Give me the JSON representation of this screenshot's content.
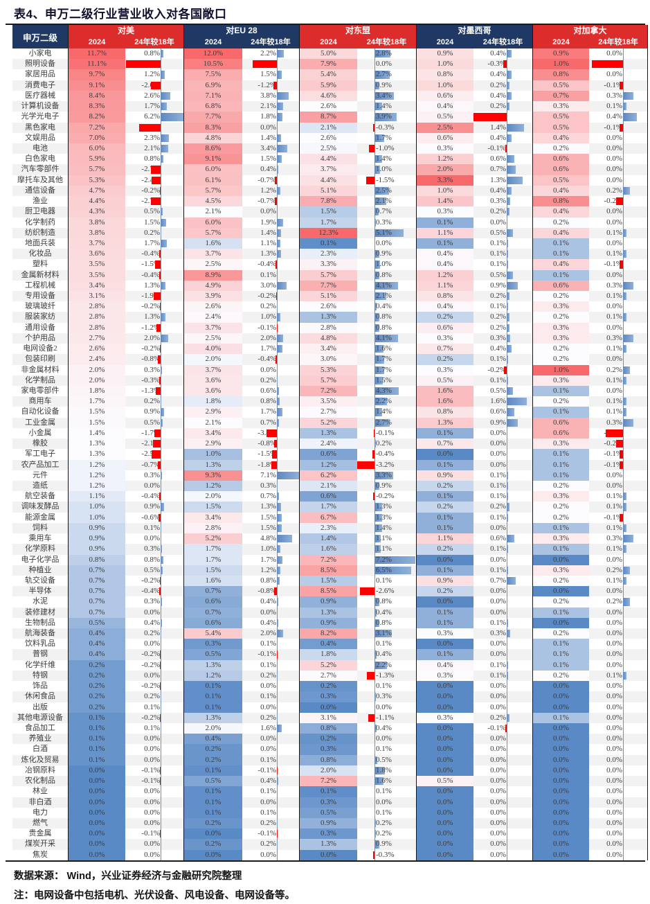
{
  "title": "表4、申万二级行业营业收入对各国敞口",
  "table": {
    "industry_header": "申万二级",
    "subheaders": [
      "2024",
      "24年较18年"
    ],
    "group_labels": [
      "对美",
      "对EU 28",
      "对东盟",
      "对墨西哥",
      "对加拿大"
    ]
  },
  "footer": {
    "source": "数据来源：  Wind，兴业证券经济与金融研究院整理",
    "note": "注：电网设备中包括电机、光伏设备、风电设备、电网设备等。"
  },
  "colors": {
    "header_red": "#DD2C2C",
    "header_navy": "#1F3864",
    "heat_min_blue": "#5A8AC6",
    "heat_mid_white": "#FCFCFF",
    "heat_max_red": "#F8696B",
    "bar_positive_blue": "#6A91C9",
    "bar_negative_red": "#FE0000"
  },
  "chart_data": {
    "type": "table",
    "title": "表4、申万二级行业营业收入对各国敞口",
    "unit": "%",
    "columns": [
      "申万二级",
      "对美 2024",
      "对美 24年较18年",
      "对EU 28 2024",
      "对EU 28 24年较18年",
      "对东盟 2024",
      "对东盟 24年较18年",
      "对墨西哥 2024",
      "对墨西哥 24年较18年",
      "对加拿大 2024",
      "对加拿大 24年较18年"
    ],
    "rows": [
      [
        "小家电",
        11.7,
        0.8,
        12.0,
        2.2,
        5.0,
        2.8,
        0.9,
        0.4,
        0.9,
        0.0
      ],
      [
        "照明设备",
        11.1,
        -9.4,
        10.5,
        -7.7,
        7.9,
        0.0,
        1.0,
        -0.3,
        1.0,
        -0.9
      ],
      [
        "家居用品",
        9.7,
        1.2,
        7.5,
        1.5,
        5.4,
        2.7,
        0.8,
        0.4,
        0.8,
        0.0
      ],
      [
        "消费电子",
        9.1,
        -2.6,
        6.9,
        -1.2,
        5.9,
        0.9,
        1.0,
        0.2,
        0.5,
        -0.1
      ],
      [
        "医疗器械",
        8.4,
        2.6,
        7.1,
        3.8,
        4.6,
        3.4,
        0.6,
        0.4,
        0.7,
        0.3
      ],
      [
        "计算机设备",
        8.3,
        1.7,
        6.8,
        2.1,
        2.6,
        1.4,
        0.4,
        0.2,
        0.3,
        0.1
      ],
      [
        "光学光电子",
        8.2,
        6.2,
        7.7,
        1.8,
        8.7,
        3.9,
        0.5,
        -3.1,
        0.5,
        0.4
      ],
      [
        "黑色家电",
        7.2,
        -5.9,
        8.3,
        0.0,
        2.1,
        -0.3,
        2.5,
        1.4,
        0.5,
        -0.1
      ],
      [
        "文娱用品",
        7.0,
        2.3,
        4.8,
        1.4,
        2.6,
        1.7,
        0.6,
        0.4,
        0.4,
        0.0
      ],
      [
        "电池",
        6.0,
        2.1,
        8.6,
        3.4,
        2.5,
        -1.0,
        0.3,
        -0.1,
        0.2,
        0.0
      ],
      [
        "白色家电",
        5.9,
        0.8,
        9.1,
        1.5,
        4.4,
        1.4,
        1.2,
        0.6,
        0.6,
        0.0
      ],
      [
        "汽车零部件",
        5.7,
        -2.7,
        6.0,
        0.4,
        3.7,
        1.0,
        2.0,
        0.7,
        0.6,
        0.0
      ],
      [
        "摩托车及其他",
        5.3,
        -2.4,
        6.1,
        -0.7,
        4.4,
        -1.5,
        3.3,
        1.3,
        0.5,
        0.0
      ],
      [
        "通信设备",
        4.7,
        -0.2,
        5.7,
        1.2,
        5.1,
        2.5,
        1.0,
        0.4,
        0.4,
        0.2
      ],
      [
        "渔业",
        4.4,
        -2.7,
        4.5,
        -0.7,
        7.8,
        2.1,
        1.4,
        0.3,
        0.8,
        -0.2
      ],
      [
        "厨卫电器",
        4.3,
        0.5,
        2.1,
        0.0,
        1.5,
        0.7,
        0.3,
        0.2,
        0.4,
        0.0
      ],
      [
        "化学制药",
        3.8,
        1.5,
        6.0,
        1.9,
        1.7,
        0.3,
        0.1,
        0.0,
        0.2,
        0.0
      ],
      [
        "纺织制造",
        3.8,
        0.2,
        5.7,
        1.4,
        12.3,
        5.1,
        1.1,
        0.5,
        0.4,
        0.1
      ],
      [
        "地面兵装",
        3.7,
        1.7,
        1.6,
        1.1,
        0.1,
        0.0,
        0.1,
        0.1,
        0.1,
        0.0
      ],
      [
        "化妆品",
        3.6,
        -0.4,
        3.7,
        1.3,
        2.3,
        0.9,
        0.4,
        0.1,
        0.1,
        0.1
      ],
      [
        "塑料",
        3.5,
        -1.5,
        2.5,
        -0.4,
        3.3,
        1.0,
        0.4,
        0.1,
        0.4,
        -0.1
      ],
      [
        "金属新材料",
        3.5,
        -0.4,
        8.9,
        0.1,
        5.7,
        0.8,
        1.2,
        0.5,
        0.1,
        0.0
      ],
      [
        "工程机械",
        3.4,
        1.3,
        4.9,
        3.0,
        7.7,
        4.1,
        1.1,
        0.9,
        0.6,
        0.3
      ],
      [
        "专用设备",
        3.1,
        -1.9,
        3.9,
        -0.2,
        5.1,
        2.1,
        0.8,
        0.2,
        0.2,
        0.1
      ],
      [
        "玻璃玻纤",
        2.8,
        -0.2,
        2.6,
        0.2,
        2.6,
        0.4,
        0.4,
        0.1,
        0.3,
        0.0
      ],
      [
        "服装家纺",
        2.8,
        1.3,
        2.4,
        1.0,
        1.3,
        0.8,
        0.2,
        0.2,
        0.2,
        0.1
      ],
      [
        "通用设备",
        2.8,
        -1.2,
        3.7,
        -0.1,
        2.8,
        0.8,
        0.6,
        0.2,
        0.3,
        0.0
      ],
      [
        "个护用品",
        2.7,
        2.0,
        2.5,
        2.0,
        4.8,
        4.1,
        0.3,
        0.3,
        0.3,
        0.3
      ],
      [
        "电网设备2",
        2.6,
        -0.2,
        4.0,
        1.7,
        3.4,
        1.6,
        0.7,
        0.4,
        0.2,
        0.1
      ],
      [
        "包装印刷",
        2.4,
        -0.8,
        2.0,
        -0.4,
        3.0,
        1.7,
        0.2,
        0.1,
        0.2,
        0.0
      ],
      [
        "非金属材料",
        2.0,
        0.3,
        3.7,
        0.0,
        5.3,
        1.7,
        0.3,
        -0.2,
        1.0,
        0.2
      ],
      [
        "化学制品",
        2.0,
        -0.3,
        3.6,
        0.2,
        5.7,
        1.5,
        0.5,
        0.1,
        0.3,
        0.1
      ],
      [
        "家电零部件",
        1.8,
        -1.3,
        3.6,
        0.6,
        7.2,
        4.3,
        1.6,
        0.5,
        0.1,
        0.0
      ],
      [
        "商用车",
        1.7,
        0.2,
        1.8,
        0.8,
        3.5,
        2.2,
        1.6,
        1.6,
        0.2,
        0.1
      ],
      [
        "自动化设备",
        1.5,
        0.9,
        2.9,
        1.7,
        2.7,
        1.4,
        0.8,
        0.6,
        0.1,
        0.1
      ],
      [
        "工业金属",
        1.5,
        0.5,
        2.1,
        0.7,
        5.2,
        2.7,
        1.3,
        0.9,
        0.6,
        0.3
      ],
      [
        "小金属",
        1.4,
        -1.7,
        3.4,
        -3.4,
        1.3,
        -0.1,
        0.1,
        0.0,
        0.6,
        -0.5
      ],
      [
        "橡胶",
        1.3,
        -2.1,
        2.9,
        -0.8,
        2.4,
        0.2,
        0.7,
        0.0,
        0.3,
        -0.2
      ],
      [
        "军工电子",
        1.3,
        -2.5,
        1.0,
        -1.5,
        0.6,
        -0.4,
        0.0,
        0.0,
        0.1,
        -0.1
      ],
      [
        "农产品加工",
        1.2,
        -0.7,
        1.3,
        -1.8,
        1.2,
        -3.2,
        0.1,
        0.0,
        0.1,
        -0.1
      ],
      [
        "元件",
        1.2,
        0.3,
        9.3,
        7.1,
        6.2,
        3.3,
        0.9,
        0.1,
        0.1,
        0.0
      ],
      [
        "造纸",
        1.2,
        0.0,
        1.2,
        0.3,
        2.1,
        0.9,
        0.2,
        0.1,
        0.2,
        0.0
      ],
      [
        "航空装备",
        1.1,
        -0.4,
        2.0,
        0.7,
        0.6,
        -0.2,
        0.1,
        0.1,
        0.3,
        0.1
      ],
      [
        "调味发酵品",
        1.0,
        0.9,
        1.5,
        1.3,
        1.7,
        1.3,
        0.2,
        0.2,
        0.2,
        0.1
      ],
      [
        "能源金属",
        1.0,
        -0.6,
        3.4,
        1.5,
        6.7,
        1.3,
        0.1,
        0.1,
        0.2,
        -0.1
      ],
      [
        "饲料",
        0.9,
        0.1,
        2.8,
        1.5,
        2.3,
        1.4,
        0.1,
        0.0,
        0.1,
        0.1
      ],
      [
        "乘用车",
        0.9,
        0.0,
        5.2,
        4.8,
        1.4,
        1.1,
        1.1,
        0.6,
        0.3,
        0.3
      ],
      [
        "化学原料",
        0.9,
        0.3,
        1.7,
        1.0,
        1.6,
        1.1,
        0.2,
        0.1,
        0.1,
        0.1
      ],
      [
        "电子化学品",
        0.8,
        0.8,
        1.7,
        1.7,
        7.2,
        7.2,
        0.0,
        0.0,
        0.0,
        0.0
      ],
      [
        "种植业",
        0.7,
        0.5,
        1.5,
        1.2,
        8.5,
        6.5,
        0.1,
        0.1,
        0.3,
        0.2
      ],
      [
        "轨交设备",
        0.7,
        -0.2,
        1.6,
        0.8,
        1.5,
        0.1,
        0.9,
        0.7,
        0.2,
        0.1
      ],
      [
        "半导体",
        0.7,
        -0.4,
        0.7,
        -0.8,
        8.5,
        -2.6,
        0.2,
        0.0,
        0.0,
        0.0
      ],
      [
        "水泥",
        0.7,
        0.3,
        0.6,
        0.4,
        0.9,
        0.8,
        0.0,
        0.0,
        0.2,
        0.2
      ],
      [
        "装修建材",
        0.7,
        0.0,
        0.7,
        0.0,
        1.3,
        0.4,
        0.1,
        0.0,
        0.1,
        0.0
      ],
      [
        "生物制品",
        0.5,
        0.4,
        0.6,
        0.4,
        0.9,
        0.8,
        0.1,
        0.1,
        0.0,
        0.0
      ],
      [
        "航海装备",
        0.4,
        0.2,
        5.4,
        2.0,
        8.2,
        3.1,
        0.3,
        0.3,
        0.2,
        0.0
      ],
      [
        "饮料乳品",
        0.4,
        0.0,
        0.3,
        0.1,
        0.4,
        0.1,
        0.0,
        0.0,
        0.1,
        0.0
      ],
      [
        "普钢",
        0.4,
        -0.2,
        0.5,
        -0.1,
        1.8,
        0.4,
        0.1,
        0.0,
        0.1,
        0.0
      ],
      [
        "化学纤维",
        0.2,
        -0.2,
        1.3,
        0.1,
        5.2,
        2.2,
        0.4,
        0.1,
        0.1,
        0.0
      ],
      [
        "特钢",
        0.2,
        0.0,
        1.2,
        0.2,
        2.7,
        -1.3,
        0.3,
        0.1,
        0.2,
        0.1
      ],
      [
        "饰品",
        0.2,
        -0.2,
        0.1,
        0.0,
        0.2,
        0.1,
        0.0,
        0.0,
        0.0,
        0.0
      ],
      [
        "休闲食品",
        0.2,
        0.2,
        0.1,
        0.1,
        0.3,
        0.3,
        0.0,
        0.0,
        0.0,
        0.0
      ],
      [
        "出版",
        0.2,
        0.1,
        0.1,
        0.0,
        0.0,
        0.0,
        0.0,
        0.0,
        0.0,
        0.0
      ],
      [
        "其他电源设备",
        0.1,
        -0.2,
        1.3,
        0.2,
        3.1,
        -1.1,
        0.3,
        0.2,
        0.1,
        0.0
      ],
      [
        "食品加工",
        0.1,
        0.1,
        2.0,
        1.6,
        0.8,
        0.4,
        0.0,
        -0.1,
        0.0,
        0.0
      ],
      [
        "养殖业",
        0.1,
        0.0,
        0.4,
        0.0,
        0.2,
        0.0,
        0.0,
        0.0,
        0.0,
        0.0
      ],
      [
        "白酒",
        0.1,
        0.0,
        0.2,
        0.0,
        0.3,
        0.1,
        0.0,
        0.0,
        0.0,
        0.0
      ],
      [
        "炼化及贸易",
        0.1,
        0.0,
        0.2,
        0.1,
        0.8,
        0.5,
        0.0,
        0.0,
        0.0,
        0.0
      ],
      [
        "冶钢原料",
        0.0,
        -0.1,
        0.1,
        -0.1,
        2.0,
        1.8,
        0.0,
        0.0,
        0.0,
        0.0
      ],
      [
        "农化制品",
        0.0,
        -0.1,
        0.5,
        0.4,
        7.2,
        1.6,
        0.5,
        0.0,
        0.0,
        0.0
      ],
      [
        "林业",
        0.0,
        0.0,
        0.1,
        0.1,
        0.1,
        0.1,
        0.0,
        0.0,
        0.0,
        0.0
      ],
      [
        "非白酒",
        0.0,
        0.0,
        0.1,
        0.0,
        0.3,
        0.0,
        0.0,
        0.0,
        0.0,
        0.0
      ],
      [
        "电力",
        0.0,
        0.0,
        0.1,
        0.1,
        0.5,
        0.1,
        0.0,
        0.0,
        0.0,
        0.0
      ],
      [
        "燃气",
        0.0,
        0.0,
        0.2,
        0.2,
        0.9,
        0.2,
        0.0,
        0.0,
        0.0,
        0.0
      ],
      [
        "贵金属",
        0.0,
        -0.1,
        0.0,
        -0.1,
        0.3,
        0.2,
        0.0,
        0.0,
        0.0,
        0.0
      ],
      [
        "煤炭开采",
        0.0,
        0.0,
        0.2,
        0.2,
        1.3,
        0.9,
        0.0,
        0.0,
        0.0,
        0.0
      ],
      [
        "焦炭",
        0.0,
        0.0,
        0.0,
        0.0,
        0.0,
        -0.3,
        0.0,
        0.0,
        0.0,
        0.0
      ]
    ]
  }
}
